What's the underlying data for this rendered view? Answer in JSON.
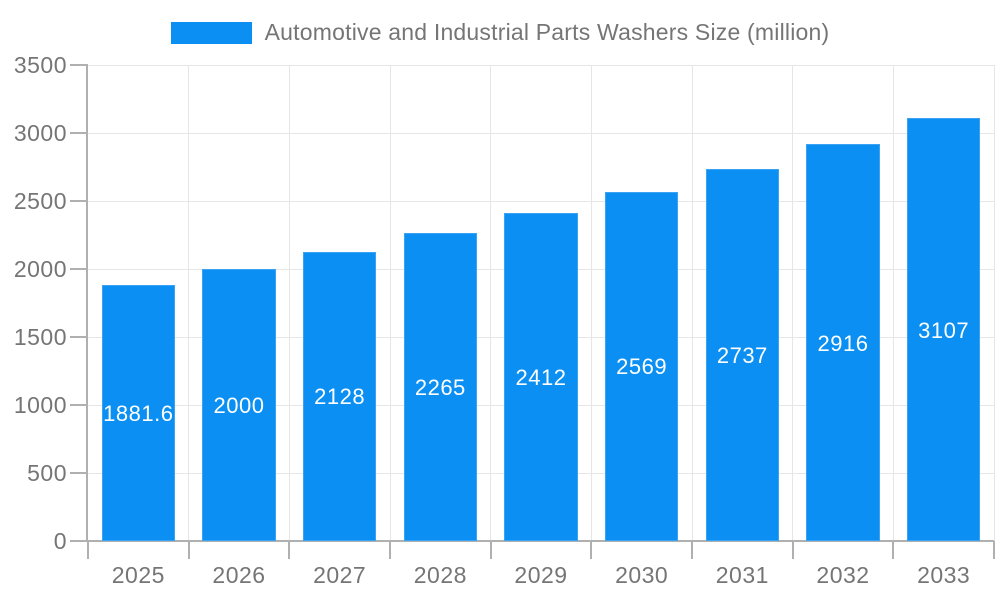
{
  "chart_data": {
    "type": "bar",
    "title": "Automotive and Industrial Parts Washers Size (million)",
    "categories": [
      "2025",
      "2026",
      "2027",
      "2028",
      "2029",
      "2030",
      "2031",
      "2032",
      "2033"
    ],
    "values": [
      1881.6,
      2000,
      2128,
      2265,
      2412,
      2569,
      2737,
      2916,
      3107
    ],
    "value_labels": [
      "1881.6",
      "2000",
      "2128",
      "2265",
      "2412",
      "2569",
      "2737",
      "2916",
      "3107"
    ],
    "xlabel": "",
    "ylabel": "",
    "ylim": [
      0,
      3500
    ],
    "yticks": [
      0,
      500,
      1000,
      1500,
      2000,
      2500,
      3000,
      3500
    ],
    "grid": true,
    "legend_position": "top",
    "value_label_position": "inside-center"
  },
  "colors": {
    "bar": "#0b8ff2",
    "bar_edge": "#3ba3f4",
    "axis": "#b0b0b0",
    "grid": "#e6e6e6",
    "tick_label": "#757575",
    "title": "#757575",
    "value_label": "#ffffff",
    "background": "#ffffff"
  }
}
